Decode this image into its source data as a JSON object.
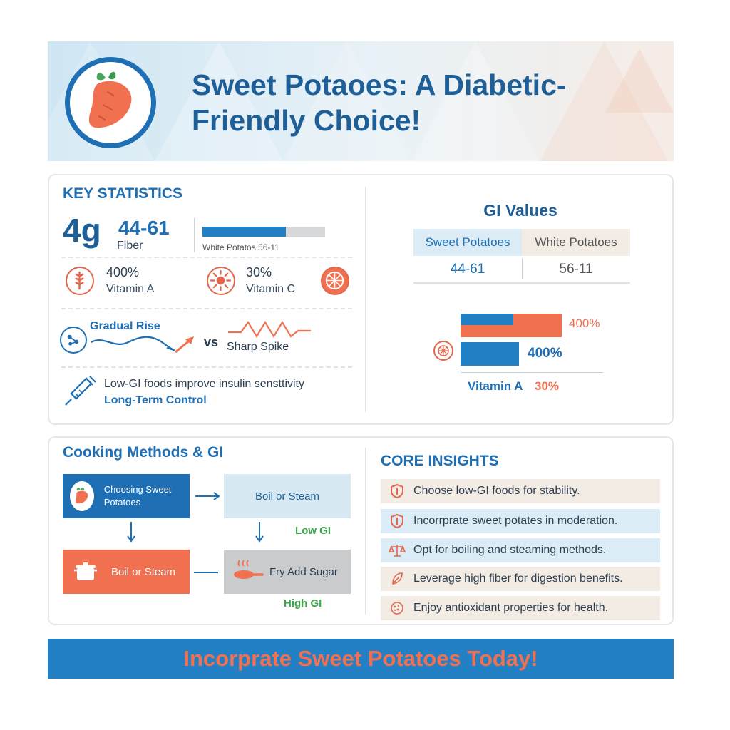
{
  "header": {
    "title": "Sweet Potaoes: A Diabetic-Friendly Choice!",
    "logo_icon": "sweet-potato-icon"
  },
  "key_statistics": {
    "heading": "KEY STATISTICS",
    "fiber_value": "4g",
    "fiber_label": "Fiber",
    "gi_value": "44-61",
    "bar_caption": "White Potatos 56-11",
    "bar_fill_fraction": 0.68,
    "vitamin_a_value": "400%",
    "vitamin_a_label": "Vitamin A",
    "vitamin_c_value": "30%",
    "vitamin_c_label": "Vitamin C",
    "gradual_label": "Gradual Rise",
    "vs_label": "vs",
    "spike_label": "Sharp Spike",
    "insulin_text": "Low-GI foods improve insulin sensttivity",
    "long_term_label": "Long-Term Control"
  },
  "gi_values": {
    "heading": "GI Values",
    "col1_header": "Sweet Potatoes",
    "col2_header": "White Potatoes",
    "col1_value": "44-61",
    "col2_value": "56-11",
    "bar1_label": "400%",
    "bar2_label": "400%",
    "caption_a": "Vitamin A",
    "caption_b": "30%",
    "bar1_blue_fraction": 0.52,
    "bar2_blue_fraction": 0.58
  },
  "cooking": {
    "heading": "Cooking Methods & GI",
    "box1": "Choosing Sweet Potatoes",
    "box2": "Boil or Steam",
    "box3": "Boil or Steam",
    "box4": "Fry Add Sugar",
    "low_gi": "Low GI",
    "high_gi": "High GI"
  },
  "insights": {
    "heading": "CORE INSIGHTS",
    "items": [
      {
        "text": "Choose low-GI foods for stability.",
        "icon": "shield-icon"
      },
      {
        "text": "Incorrprate sweet potates in moderation.",
        "icon": "shield-icon"
      },
      {
        "text": "Opt for boiling and steaming methods.",
        "icon": "scale-icon"
      },
      {
        "text": "Leverage high fiber for digestion benefits.",
        "icon": "leaf-icon"
      },
      {
        "text": "Enjoy antioxidant properties for health.",
        "icon": "antioxidant-icon"
      }
    ]
  },
  "footer": {
    "cta": "Incorprate Sweet Potatoes Today!"
  },
  "colors": {
    "blue": "#1f6fb5",
    "bar_blue": "#2380c4",
    "orange": "#f07050",
    "green": "#3aa84a"
  }
}
